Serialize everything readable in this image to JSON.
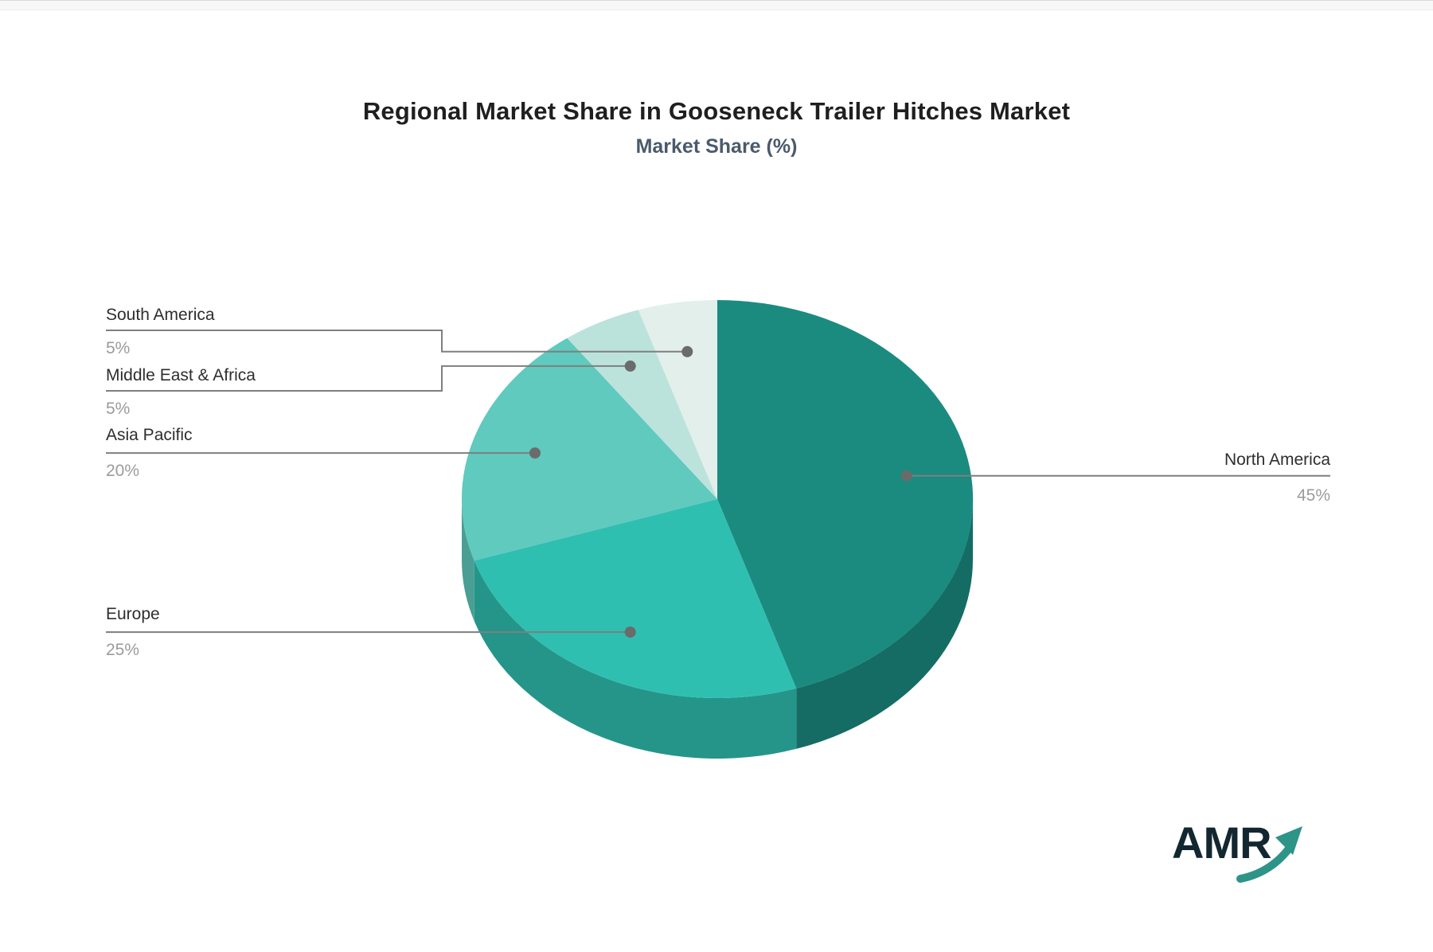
{
  "header": {
    "title": "Regional Market Share in Gooseneck Trailer Hitches Market",
    "subtitle": "Market Share (%)"
  },
  "chart_data": {
    "type": "pie",
    "style": "3d",
    "title": "Regional Market Share in Gooseneck Trailer Hitches Market",
    "subtitle": "Market Share (%)",
    "unit": "%",
    "start_angle_deg": 0,
    "direction": "clockwise-from-top",
    "legend_position": "callout-labels",
    "slices": [
      {
        "label": "North America",
        "value": 45,
        "value_text": "45%",
        "color": "#1b8b80"
      },
      {
        "label": "Europe",
        "value": 25,
        "value_text": "25%",
        "color": "#2fbfb1"
      },
      {
        "label": "Asia Pacific",
        "value": 20,
        "value_text": "20%",
        "color": "#5fcabd"
      },
      {
        "label": "Middle East & Africa",
        "value": 5,
        "value_text": "5%",
        "color": "#bce2dc"
      },
      {
        "label": "South America",
        "value": 5,
        "value_text": "5%",
        "color": "#e2efeb"
      }
    ],
    "leader_line_color": "#7f7f7f",
    "leader_dot_color": "#6b6b6b"
  },
  "logo": {
    "text": "AMR",
    "arrow_color": "#2d9488"
  }
}
